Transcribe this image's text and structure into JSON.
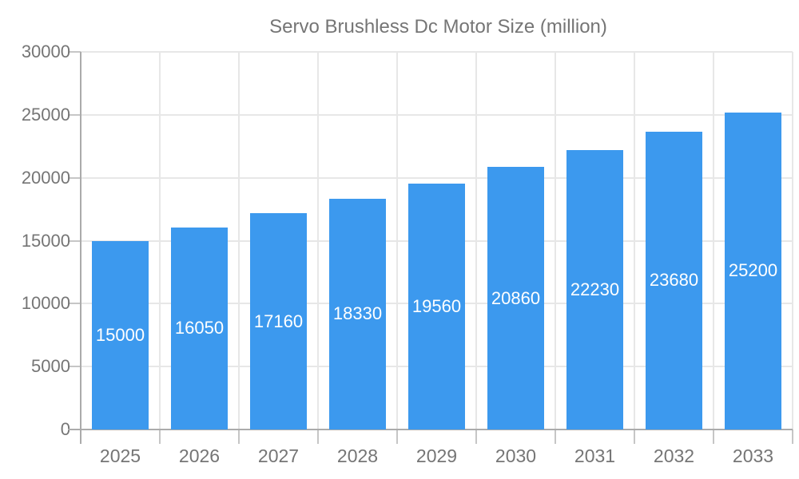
{
  "legend": {
    "label": "Servo Brushless Dc Motor Size (million)"
  },
  "colors": {
    "bar": "#3C99EE",
    "grid_line": "#E7E7E7",
    "axis_line": "#ABABAB",
    "tick_line": "#C6C6C6",
    "tick_text": "#757575",
    "legend_text": "#757575",
    "bar_label_text": "#FFFFFF",
    "background": "#FFFFFF"
  },
  "chart_data": {
    "type": "bar",
    "title": "Servo Brushless Dc Motor Size (million)",
    "series_name": "Servo Brushless Dc Motor Size (million)",
    "categories": [
      "2025",
      "2026",
      "2027",
      "2028",
      "2029",
      "2030",
      "2031",
      "2032",
      "2033"
    ],
    "values": [
      15000,
      16050,
      17160,
      18330,
      19560,
      20860,
      22230,
      23680,
      25200
    ],
    "xlabel": "",
    "ylabel": "",
    "ylim": [
      0,
      30000
    ],
    "ytick_step": 5000,
    "ytick_labels": [
      "0",
      "5000",
      "10000",
      "15000",
      "20000",
      "25000",
      "30000"
    ],
    "grid": "horizontal and vertical, light gray",
    "legend_position": "top-center",
    "data_labels": "white, centered inside bars"
  }
}
